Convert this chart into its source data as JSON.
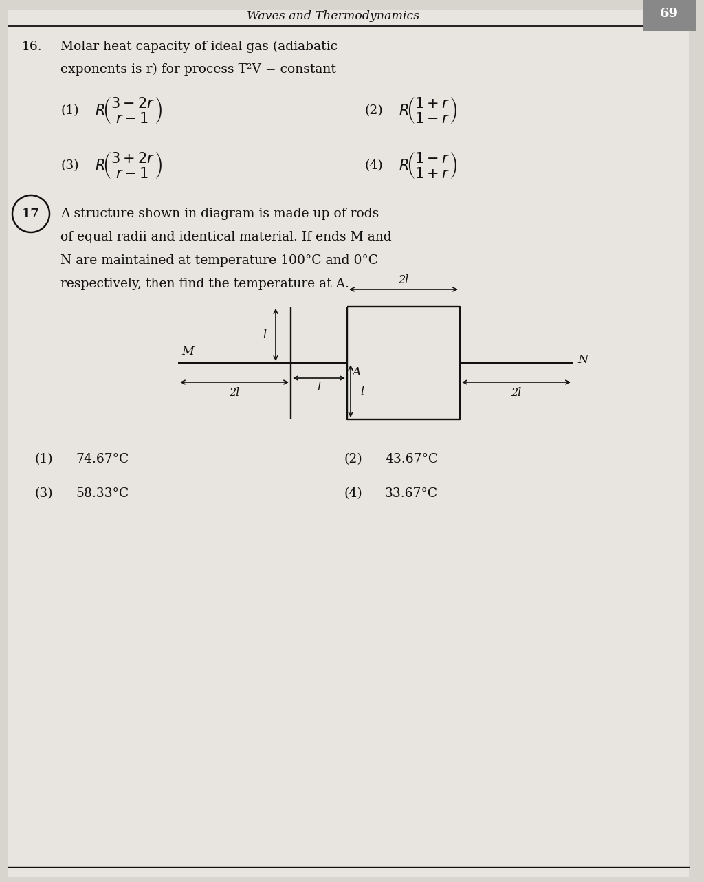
{
  "bg_color": "#d8d4ce",
  "page_bg": "#e8e4df",
  "title_text": "Waves and Thermodynamics",
  "page_num": "69",
  "q16_num": "16.",
  "q16_line1": "Molar heat capacity of ideal gas (adiabatic",
  "q16_line2": "exponents is r) for process T²V = constant",
  "opt1_label": "(1)",
  "opt2_label": "(2)",
  "opt3_label": "(3)",
  "opt4_label": "(4)",
  "q17_num": "17",
  "q17_line1": "A structure shown in diagram is made up of rods",
  "q17_line2": "of equal radii and identical material. If ends M and",
  "q17_line3": "N are maintained at temperature 100°C and 0°C",
  "q17_line4": "respectively, then find the temperature at A.",
  "ans1_label": "(1)",
  "ans1_val": "74.67°C",
  "ans2_label": "(2)",
  "ans2_val": "43.67°C",
  "ans3_label": "(3)",
  "ans3_val": "58.33°C",
  "ans4_label": "(4)",
  "ans4_val": "33.67°C",
  "text_color": "#111111",
  "line_color": "#111111",
  "header_gray": "#888888"
}
